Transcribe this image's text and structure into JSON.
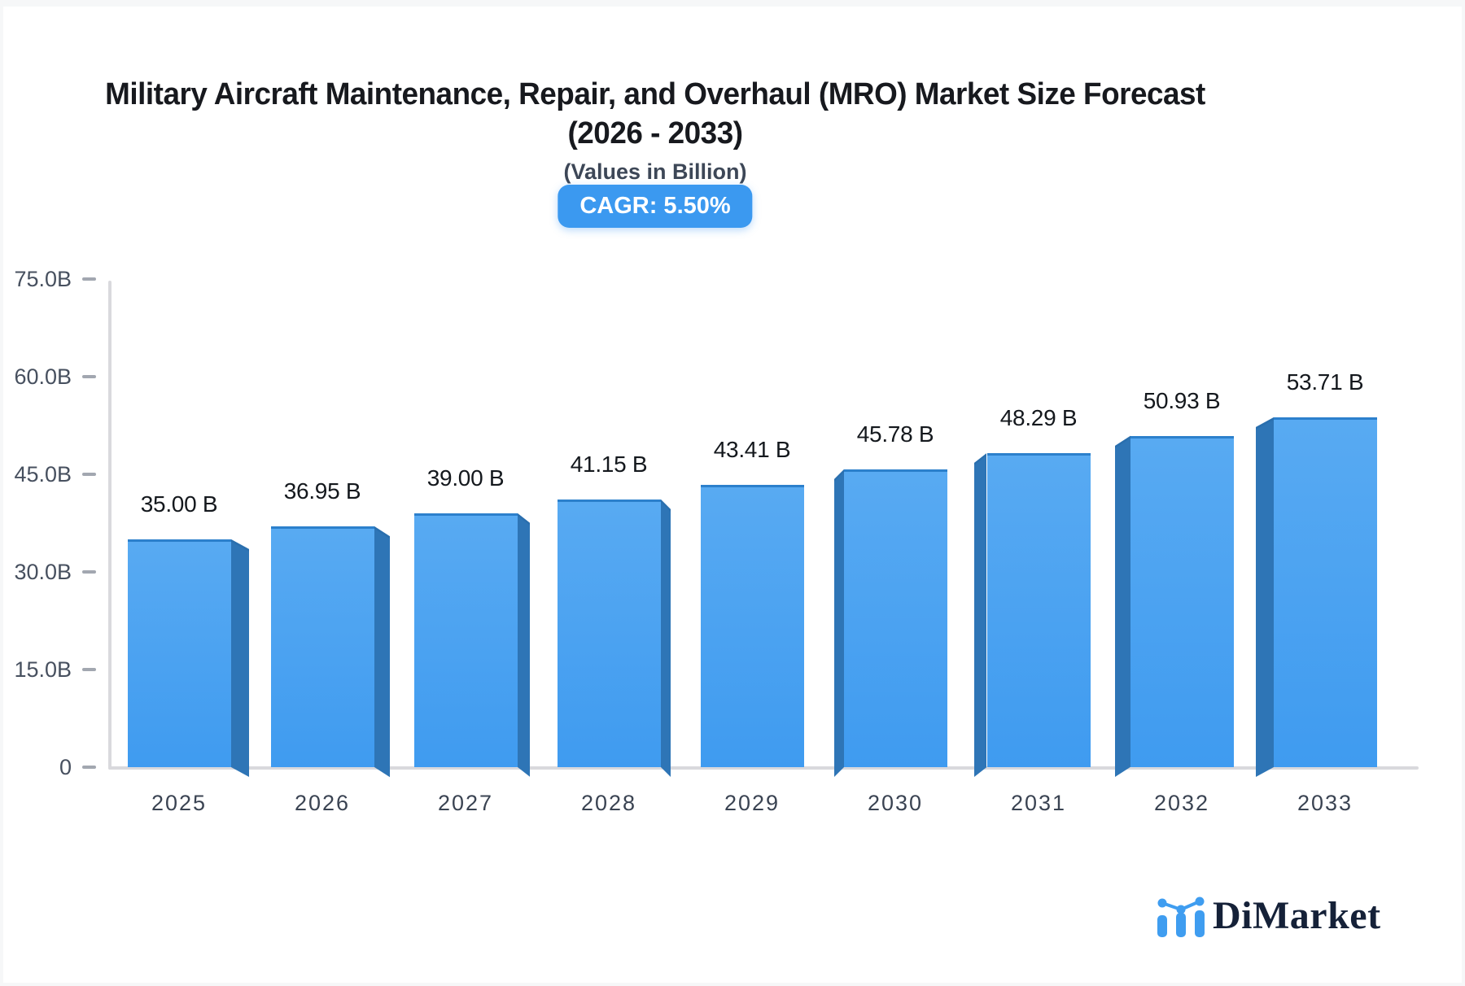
{
  "header": {
    "title_line1": "Military Aircraft Maintenance, Repair, and Overhaul (MRO) Market Size Forecast",
    "title_line2": "(2026 - 2033)",
    "subtitle": "(Values in Billion)",
    "cagr_label": "CAGR: 5.50%",
    "badge_bg": "#3B99F0"
  },
  "chart_data": {
    "type": "bar",
    "title": "Military Aircraft Maintenance, Repair, and Overhaul (MRO) Market Size Forecast (2026 - 2033)",
    "subtitle": "Values in Billion",
    "cagr_percent": 5.5,
    "categories": [
      "2025",
      "2026",
      "2027",
      "2028",
      "2029",
      "2030",
      "2031",
      "2032",
      "2033"
    ],
    "values": [
      35.0,
      36.95,
      39.0,
      41.15,
      43.41,
      45.78,
      48.29,
      50.93,
      53.71
    ],
    "bar_labels": [
      "35.00 B",
      "36.95 B",
      "39.00 B",
      "41.15 B",
      "43.41 B",
      "45.78 B",
      "48.29 B",
      "50.93 B",
      "53.71 B"
    ],
    "ylim": [
      0,
      75
    ],
    "yticks": [
      {
        "value": 75,
        "label": "75.0B"
      },
      {
        "value": 60,
        "label": "60.0B"
      },
      {
        "value": 45,
        "label": "45.0B"
      },
      {
        "value": 30,
        "label": "30.0B"
      },
      {
        "value": 15,
        "label": "15.0B"
      },
      {
        "value": 0,
        "label": "0"
      }
    ],
    "grid": false,
    "legend": false,
    "colors": {
      "bar_face_top": "#58AAF2",
      "bar_face_bottom": "#3F9BF0",
      "bar_face_edge": "#2C80CC",
      "bar_side": "#2E75B6",
      "bar_side_edge": "#2A6FAE",
      "axis_line": "#D9D9DD",
      "tick_mark": "#A2A7B0",
      "tick_label": "#47505F",
      "x_label": "#3A4352",
      "value_label": "#14181D"
    }
  },
  "branding": {
    "logo_text": "DiMarket",
    "logo_text_color": "#152138",
    "logo_icon": "bar-line-chart-icon",
    "logo_icon_color": "#3F9DF0"
  }
}
